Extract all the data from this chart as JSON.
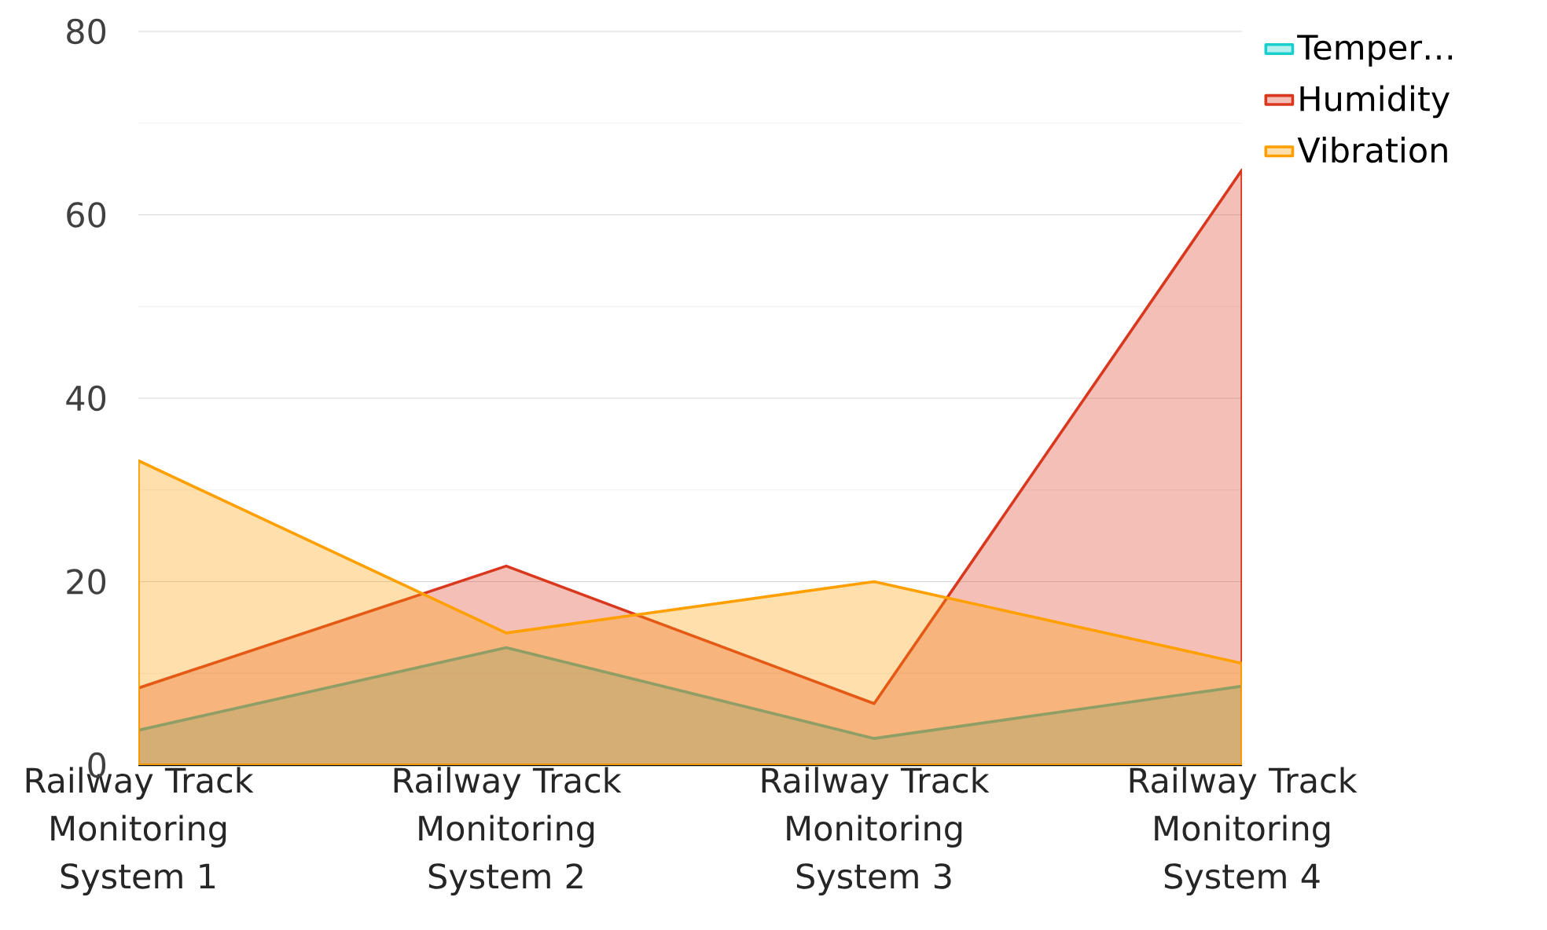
{
  "chart_data": {
    "type": "area",
    "categories": [
      "Railway Track Monitoring System 1",
      "Railway Track Monitoring System 2",
      "Railway Track Monitoring System 3",
      "Railway Track Monitoring System 4"
    ],
    "series": [
      {
        "name": "Temper…",
        "color": "#1ccfcf",
        "values": [
          3.8,
          12.8,
          2.9,
          8.6
        ]
      },
      {
        "name": "Humidity",
        "color": "#d9381e",
        "values": [
          8.4,
          21.7,
          6.7,
          64.9
        ]
      },
      {
        "name": "Vibration",
        "color": "#ff9f00",
        "values": [
          33.2,
          14.4,
          20.0,
          11.1
        ]
      }
    ],
    "ylim": [
      0,
      80
    ],
    "yticks": [
      0,
      20,
      40,
      60,
      80
    ],
    "grid": "y",
    "legend": "top right"
  }
}
